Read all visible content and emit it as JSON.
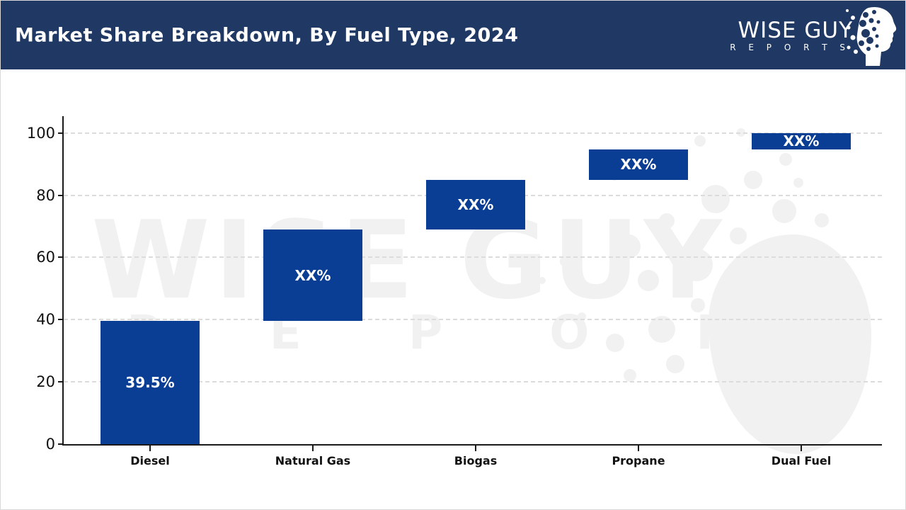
{
  "header": {
    "title": "Market Share Breakdown, By Fuel Type, 2024",
    "background_color": "#203864",
    "logo": {
      "line1": "WISE GUY",
      "line2": "R E P O R T S"
    }
  },
  "watermark": {
    "line1": "WISE GUY",
    "line2": "R E P O R T S"
  },
  "chart_data": {
    "type": "bar",
    "subtype": "waterfall",
    "title": "Market Share Breakdown, By Fuel Type, 2024",
    "categories": [
      "Diesel",
      "Natural Gas",
      "Biogas",
      "Propane",
      "Dual Fuel"
    ],
    "bars": [
      {
        "category": "Diesel",
        "start": 0,
        "end": 39.5,
        "label": "39.5%"
      },
      {
        "category": "Natural Gas",
        "start": 39.5,
        "end": 69,
        "label": "XX%"
      },
      {
        "category": "Biogas",
        "start": 69,
        "end": 85,
        "label": "XX%"
      },
      {
        "category": "Propane",
        "start": 85,
        "end": 94.7,
        "label": "XX%"
      },
      {
        "category": "Dual Fuel",
        "start": 94.7,
        "end": 100,
        "label": "XX%"
      }
    ],
    "ylim": [
      0,
      105
    ],
    "yticks": [
      0,
      20,
      40,
      60,
      80,
      100
    ],
    "grid": "horizontal-dashed",
    "legend": "none",
    "bar_color": "#0a3e94",
    "bar_label_color": "#ffffff",
    "axis_color": "#1a1a1a",
    "grid_color": "#dcdcdc"
  }
}
